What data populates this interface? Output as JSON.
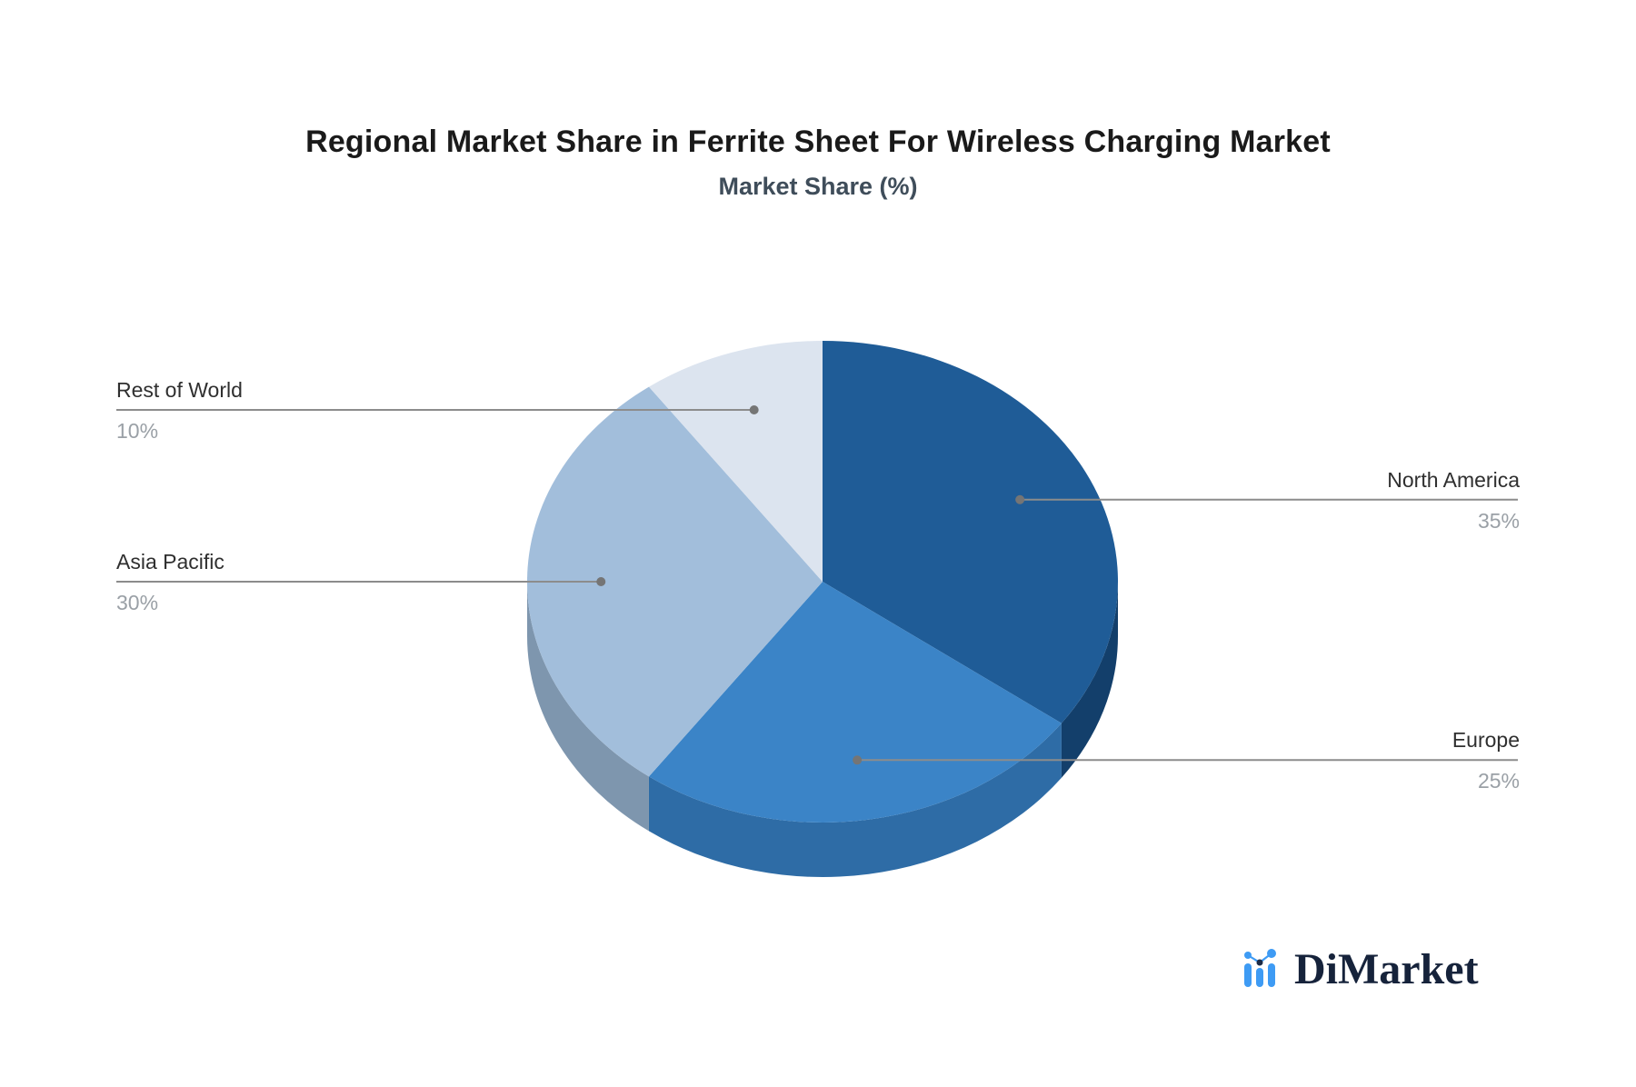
{
  "chart_data": {
    "type": "pie",
    "title": "Regional Market Share in Ferrite Sheet For Wireless Charging Market",
    "subtitle": "Market Share (%)",
    "unit": "%",
    "effect": "3d-depth",
    "direction": "clockwise",
    "start_position": "12-o-clock",
    "legend": "none",
    "categories": [
      "North America",
      "Europe",
      "Asia Pacific",
      "Rest of World"
    ],
    "values": [
      35,
      25,
      30,
      10
    ],
    "slices": [
      {
        "label": "North America",
        "value": 35,
        "value_label": "35%",
        "color": "#1f5c97",
        "side_color": "#133f6b",
        "label_side": "right"
      },
      {
        "label": "Europe",
        "value": 25,
        "value_label": "25%",
        "color": "#3b84c7",
        "side_color": "#2e6ca6",
        "label_side": "right"
      },
      {
        "label": "Asia Pacific",
        "value": 30,
        "value_label": "30%",
        "color": "#a2bedb",
        "side_color": "#7e96ae",
        "label_side": "left"
      },
      {
        "label": "Rest of World",
        "value": 10,
        "value_label": "10%",
        "color": "#dce4ef",
        "side_color": "#c2cbd9",
        "label_side": "left"
      }
    ],
    "leader_line_color": "#8c8c8c",
    "leader_dot_color": "#757575",
    "label_color": "#2f2f2f",
    "value_color": "#9aa0a6"
  },
  "branding": {
    "logo_text": "DiMarket",
    "logo_icon": "bar-line-chart-icon",
    "logo_text_color": "#16233b",
    "logo_accent_color": "#3e9bf4",
    "logo_dot_color": "#1c2b47"
  }
}
